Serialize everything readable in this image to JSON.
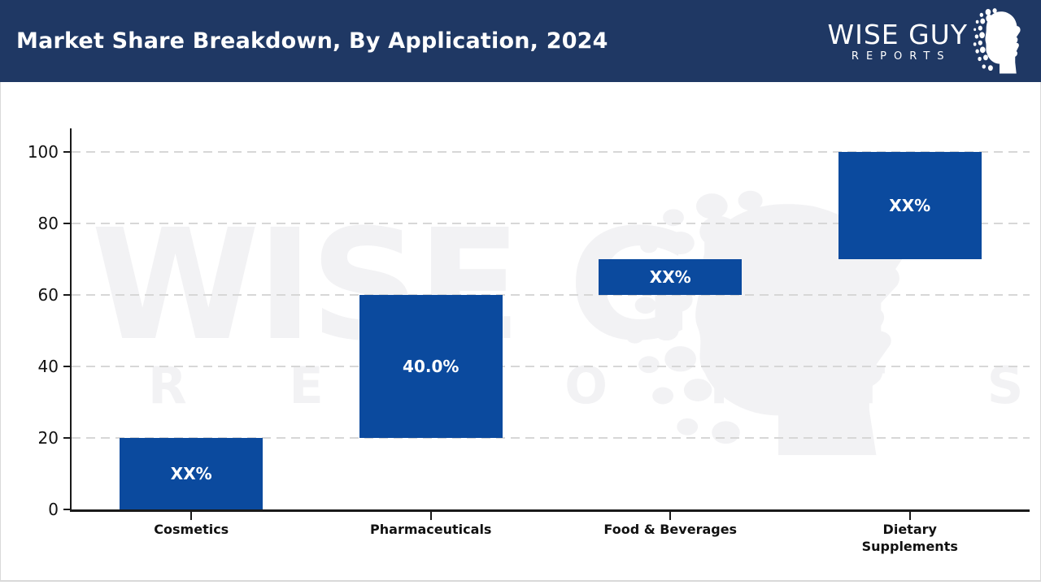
{
  "header": {
    "title": "Market Share Breakdown, By Application, 2024",
    "logo": {
      "line1": "WISE GUY",
      "line2": "REPORTS"
    }
  },
  "watermark": {
    "line1": "WISE GUY",
    "line2": "R E P O R T S"
  },
  "theme": {
    "header_bg": "#1f3864",
    "bar_color": "#0b4a9e",
    "grid_color": "#d7d7d7",
    "axis_color": "#1a1a1a",
    "watermark_color": "#f2f2f4",
    "bar_label_color": "#ffffff"
  },
  "chart_data": {
    "type": "bar",
    "subtype": "waterfall",
    "title": "Market Share Breakdown, By Application, 2024",
    "categories": [
      "Cosmetics",
      "Pharmaceuticals",
      "Food & Beverages",
      "Dietary\nSupplements"
    ],
    "series": [
      {
        "name": "Market Share",
        "segments": [
          {
            "category": "Cosmetics",
            "start": 0,
            "end": 20,
            "label": "XX%"
          },
          {
            "category": "Pharmaceuticals",
            "start": 20,
            "end": 60,
            "label": "40.0%"
          },
          {
            "category": "Food & Beverages",
            "start": 60,
            "end": 70,
            "label": "XX%"
          },
          {
            "category": "Dietary Supplements",
            "start": 70,
            "end": 100,
            "label": "XX%"
          }
        ]
      }
    ],
    "xlabel": "",
    "ylabel": "",
    "ylim": [
      0,
      100
    ],
    "yticks": [
      0,
      20,
      40,
      60,
      80,
      100
    ],
    "grid": "dashed horizontal",
    "legend": "none"
  }
}
